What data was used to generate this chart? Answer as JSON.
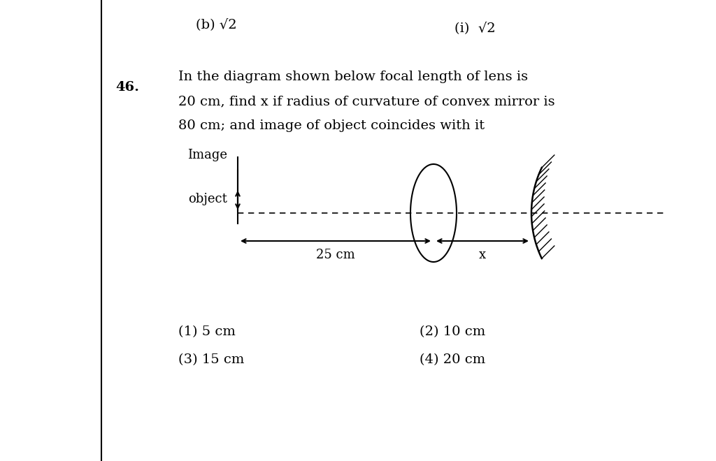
{
  "bg_color": "#ffffff",
  "text_color": "#000000",
  "question_number": "46.",
  "question_text_line1": "In the diagram shown below focal length of lens is",
  "question_text_line2": "20 cm, find x if radius of curvature of convex mirror is",
  "question_text_line3": "80 cm; and image of object coincides with it",
  "header_text1": "(b) √2",
  "header_text2": "(i)  √2",
  "options": [
    "(1) 5 cm",
    "(3) 15 cm",
    "(2) 10 cm",
    "(4) 20 cm"
  ],
  "diagram_label_image": "Image",
  "diagram_label_object": "object",
  "diagram_label_25cm": "25 cm",
  "diagram_label_x": "x",
  "dashed_line_color": "#000000",
  "object_line_color": "#000000"
}
